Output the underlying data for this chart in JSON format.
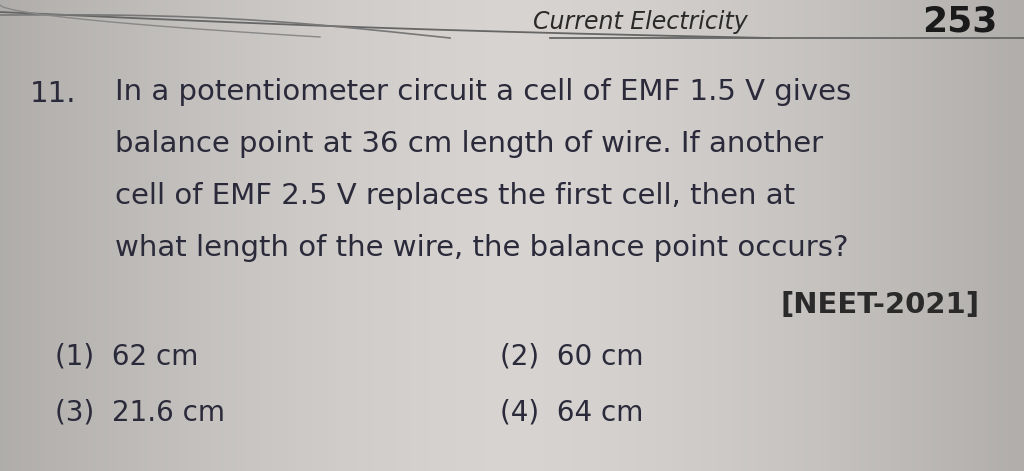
{
  "background_color": "#c8c5c0",
  "center_bg_color": "#dddad6",
  "header_text": "Current Electricity",
  "header_number": "253",
  "question_number": "11.",
  "question_text_line1": "In a potentiometer circuit a cell of EMF 1.5 V gives",
  "question_text_line2": "balance point at 36 cm length of wire. If another",
  "question_text_line3": "cell of EMF 2.5 V replaces the first cell, then at",
  "question_text_line4": "what length of the wire, the balance point occurs?",
  "tag": "[NEET-2021]",
  "option1": "(1)  62 cm",
  "option2": "(2)  60 cm",
  "option3": "(3)  21.6 cm",
  "option4": "(4)  64 cm",
  "text_color": "#2a2a3a",
  "header_color": "#2a2a2a",
  "header_num_color": "#1a1a1a",
  "tag_color": "#2a2a2a",
  "question_fontsize": 21,
  "option_fontsize": 20,
  "header_fontsize": 17,
  "header_num_fontsize": 26,
  "question_num_fontsize": 21
}
